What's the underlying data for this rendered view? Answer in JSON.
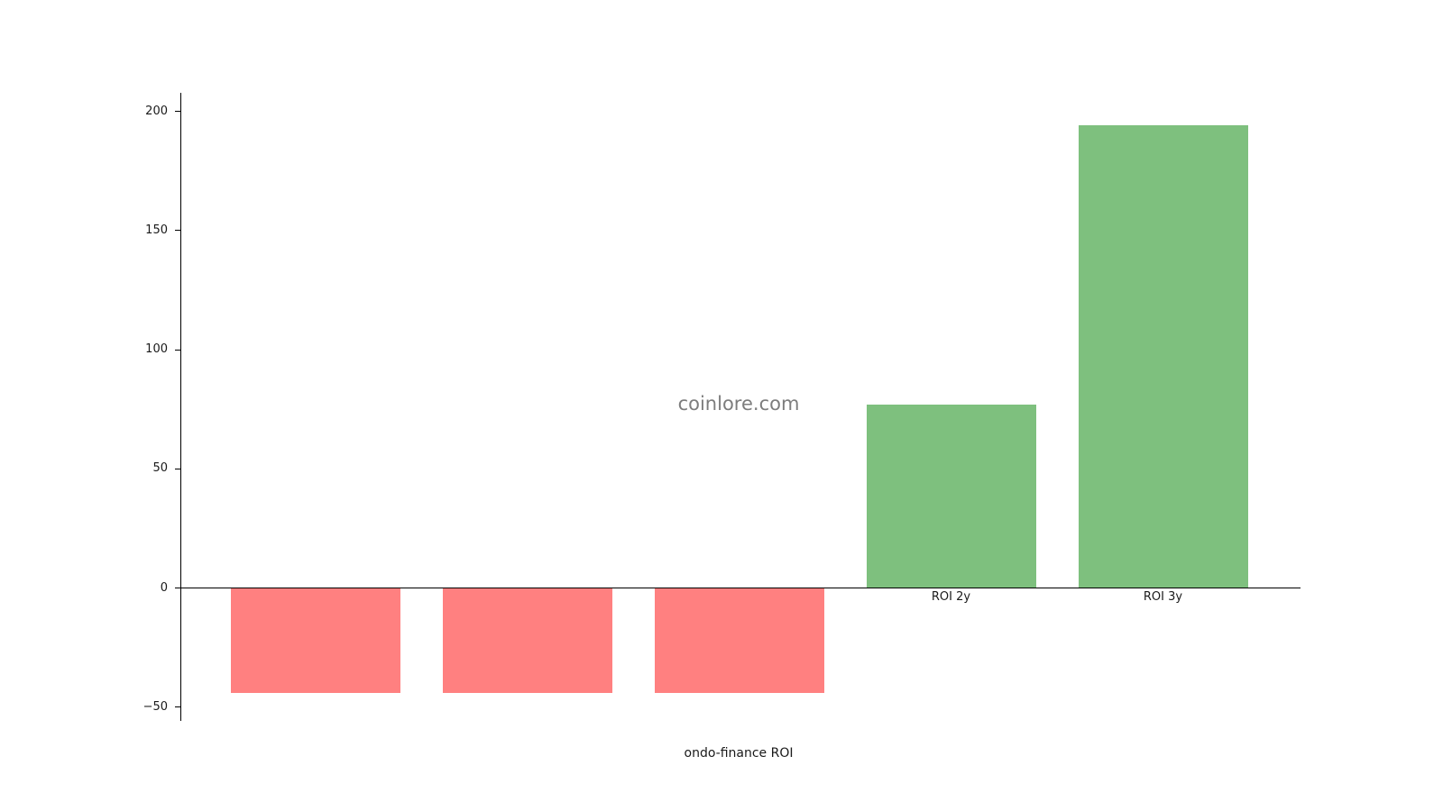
{
  "watermark": {
    "text": "coinlore.com",
    "color": "#7d7d7d"
  },
  "chart_data": {
    "type": "bar",
    "title": "ondo-finance ROI",
    "title_position": "bottom",
    "categories": [
      "",
      "",
      "",
      "ROI 2y",
      "ROI 3y"
    ],
    "values": [
      -44,
      -44,
      -44,
      77,
      194
    ],
    "series": [
      {
        "name": "ROI",
        "values": [
          -44,
          -44,
          -44,
          77,
          194
        ]
      }
    ],
    "xlabel": "",
    "ylabel": "",
    "yticks": [
      200,
      150,
      100,
      50,
      0,
      -50
    ],
    "ylim": [
      -56,
      208
    ],
    "grid": false,
    "legend": false,
    "positive_color": "#7ec07e",
    "negative_color": "#ff8080",
    "axis_color": "#000000",
    "tick_label_color": "#1a1a1a",
    "title_color": "#1a1a1a",
    "note_visible_tick_labels": [
      "ROI 2y",
      "ROI 3y"
    ]
  }
}
